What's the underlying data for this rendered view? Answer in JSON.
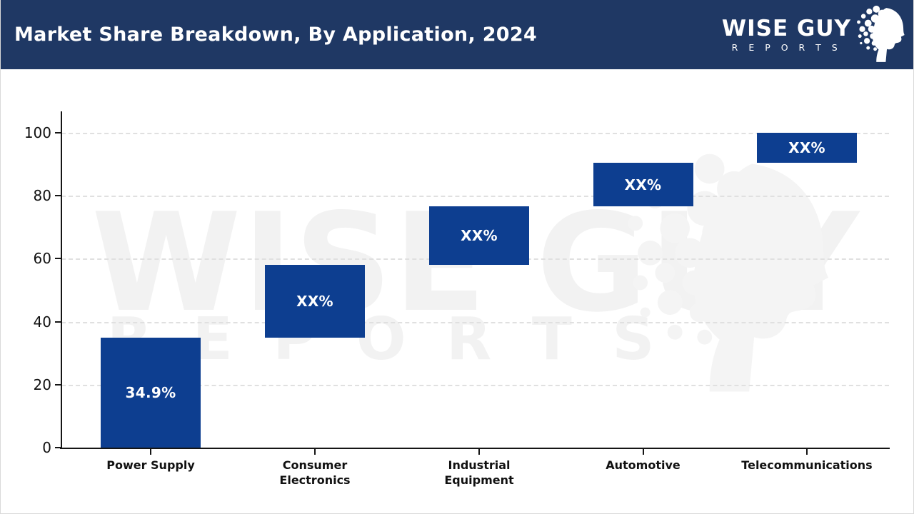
{
  "header": {
    "title": "Market Share Breakdown, By Application, 2024",
    "logo": {
      "name": "WISE GUY",
      "tagline": "R E P O R T S"
    }
  },
  "watermark": {
    "name": "WISE GUY",
    "tagline": "R E P O R T S"
  },
  "chart_data": {
    "type": "bar",
    "variant": "waterfall",
    "title": "Market Share Breakdown, By Application, 2024",
    "categories": [
      "Power Supply",
      "Consumer Electronics",
      "Industrial Equipment",
      "Automotive",
      "Telecommunications"
    ],
    "x_labels": [
      "Power Supply",
      "Consumer\nElectronics",
      "Industrial\nEquipment",
      "Automotive",
      "Telecommunications"
    ],
    "segments": [
      {
        "category": "Power Supply",
        "start": 0,
        "end": 34.9,
        "value": 34.9,
        "label": "34.9%"
      },
      {
        "category": "Consumer Electronics",
        "start": 34.9,
        "end": 58.0,
        "value": 23.1,
        "label": "XX%"
      },
      {
        "category": "Industrial Equipment",
        "start": 58.0,
        "end": 76.6,
        "value": 18.6,
        "label": "XX%"
      },
      {
        "category": "Automotive",
        "start": 76.6,
        "end": 90.5,
        "value": 13.9,
        "label": "XX%"
      },
      {
        "category": "Telecommunications",
        "start": 90.5,
        "end": 100,
        "value": 9.5,
        "label": "XX%"
      }
    ],
    "y_ticks": [
      0,
      20,
      40,
      60,
      80,
      100
    ],
    "ylim": [
      0,
      107
    ],
    "grid": "horizontal-dashed",
    "legend": "none",
    "bar_color": "#0d3e90"
  },
  "colors": {
    "header_bg": "#1f3864",
    "bar": "#0d3e90",
    "axis": "#151515",
    "gridline": "#e0e0e0",
    "watermark": "#f2f2f2",
    "bar_label_text": "#ffffff"
  }
}
